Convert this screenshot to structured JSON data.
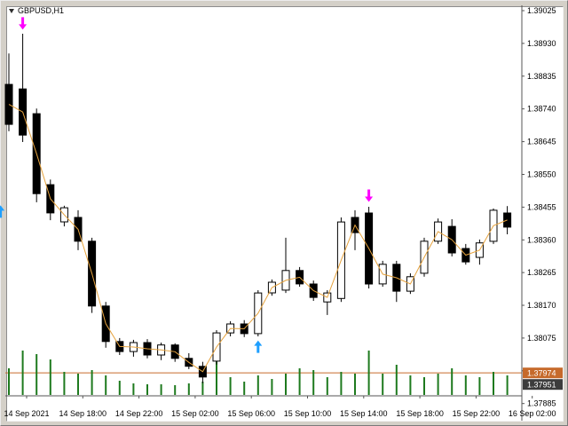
{
  "window": {
    "symbol_label": "GBPUSD,H1"
  },
  "colors": {
    "frame": "#D4D0C8",
    "plot_bg": "#FFFFFF",
    "bull": "#FFFFFF",
    "bear": "#000000",
    "wick": "#000000",
    "volume": "#1E7A1E",
    "zigzag": "#E6A33E",
    "hline": "#C66A2B",
    "sell_arrow": "#FF00FF",
    "buy_arrow": "#1E9FFF",
    "separator": "#555555",
    "axis_text": "#000000",
    "tag_text": "#FFFFFF"
  },
  "price_axis": {
    "labels": [
      "1.39025",
      "1.38930",
      "1.38835",
      "1.38740",
      "1.38645",
      "1.38550",
      "1.38455",
      "1.38360",
      "1.38265",
      "1.38170",
      "1.38075",
      "1.37980",
      "1.37885"
    ],
    "tags": [
      {
        "label": "1.37974",
        "price": 1.37974,
        "bg": "#C66A2B"
      },
      {
        "label": "1.37951",
        "price": 1.37951,
        "bg": "#3C3C3C"
      }
    ]
  },
  "time_axis": {
    "labels": [
      "14 Sep 2021",
      "14 Sep 18:00",
      "14 Sep 22:00",
      "15 Sep 02:00",
      "15 Sep 06:00",
      "15 Sep 10:00",
      "15 Sep 14:00",
      "15 Sep 18:00",
      "15 Sep 22:00",
      "16 Sep 02:00"
    ]
  },
  "chart_data": {
    "type": "candlestick",
    "symbol": "GBPUSD",
    "timeframe": "H1",
    "title": "GBPUSD,H1",
    "grid": false,
    "y_axis": {
      "top_label": 1.39025,
      "bottom_label": 1.37885,
      "step": 0.00095
    },
    "hline": {
      "label": "1.37974",
      "price": 1.37974
    },
    "candles": [
      {
        "t": "14 Sep 13:00",
        "o": 1.38811,
        "h": 1.38901,
        "l": 1.38675,
        "c": 1.38695,
        "v": 30
      },
      {
        "t": "14 Sep 14:00",
        "o": 1.38798,
        "h": 1.38958,
        "l": 1.38644,
        "c": 1.38664,
        "v": 50
      },
      {
        "t": "14 Sep 15:00",
        "o": 1.38726,
        "h": 1.38741,
        "l": 1.38469,
        "c": 1.38494,
        "v": 46
      },
      {
        "t": "14 Sep 16:00",
        "o": 1.3852,
        "h": 1.38535,
        "l": 1.38417,
        "c": 1.38438,
        "v": 40
      },
      {
        "t": "14 Sep 17:00",
        "o": 1.38412,
        "h": 1.38459,
        "l": 1.38399,
        "c": 1.38453,
        "v": 26
      },
      {
        "t": "14 Sep 18:00",
        "o": 1.38425,
        "h": 1.38446,
        "l": 1.3833,
        "c": 1.38356,
        "v": 24
      },
      {
        "t": "14 Sep 19:00",
        "o": 1.38356,
        "h": 1.38366,
        "l": 1.38148,
        "c": 1.38168,
        "v": 28
      },
      {
        "t": "14 Sep 20:00",
        "o": 1.38168,
        "h": 1.3818,
        "l": 1.38047,
        "c": 1.38065,
        "v": 22
      },
      {
        "t": "14 Sep 21:00",
        "o": 1.38065,
        "h": 1.38075,
        "l": 1.38026,
        "c": 1.38036,
        "v": 16
      },
      {
        "t": "14 Sep 22:00",
        "o": 1.38036,
        "h": 1.3807,
        "l": 1.38021,
        "c": 1.38062,
        "v": 13
      },
      {
        "t": "14 Sep 23:00",
        "o": 1.38062,
        "h": 1.38072,
        "l": 1.38016,
        "c": 1.38026,
        "v": 12
      },
      {
        "t": "15 Sep 00:00",
        "o": 1.38026,
        "h": 1.38062,
        "l": 1.38011,
        "c": 1.38055,
        "v": 12
      },
      {
        "t": "15 Sep 01:00",
        "o": 1.38055,
        "h": 1.3806,
        "l": 1.38006,
        "c": 1.38016,
        "v": 11
      },
      {
        "t": "15 Sep 02:00",
        "o": 1.38016,
        "h": 1.38031,
        "l": 1.37985,
        "c": 1.37993,
        "v": 13
      },
      {
        "t": "15 Sep 03:00",
        "o": 1.37993,
        "h": 1.38006,
        "l": 1.37944,
        "c": 1.37962,
        "v": 15
      },
      {
        "t": "15 Sep 04:00",
        "o": 1.38008,
        "h": 1.38098,
        "l": 1.37998,
        "c": 1.3809,
        "v": 52
      },
      {
        "t": "15 Sep 05:00",
        "o": 1.3809,
        "h": 1.38124,
        "l": 1.3808,
        "c": 1.38116,
        "v": 20
      },
      {
        "t": "15 Sep 06:00",
        "o": 1.38116,
        "h": 1.38127,
        "l": 1.38078,
        "c": 1.38088,
        "v": 15
      },
      {
        "t": "15 Sep 07:00",
        "o": 1.38088,
        "h": 1.38214,
        "l": 1.3808,
        "c": 1.38206,
        "v": 22
      },
      {
        "t": "15 Sep 08:00",
        "o": 1.38206,
        "h": 1.38245,
        "l": 1.38198,
        "c": 1.38237,
        "v": 18
      },
      {
        "t": "15 Sep 09:00",
        "o": 1.38214,
        "h": 1.38366,
        "l": 1.38206,
        "c": 1.38271,
        "v": 24
      },
      {
        "t": "15 Sep 10:00",
        "o": 1.38271,
        "h": 1.38281,
        "l": 1.38224,
        "c": 1.38232,
        "v": 30
      },
      {
        "t": "15 Sep 11:00",
        "o": 1.38232,
        "h": 1.38242,
        "l": 1.38183,
        "c": 1.38193,
        "v": 28
      },
      {
        "t": "15 Sep 12:00",
        "o": 1.3818,
        "h": 1.38214,
        "l": 1.38142,
        "c": 1.38206,
        "v": 20
      },
      {
        "t": "15 Sep 13:00",
        "o": 1.3819,
        "h": 1.38425,
        "l": 1.3818,
        "c": 1.38412,
        "v": 26
      },
      {
        "t": "15 Sep 14:00",
        "o": 1.38425,
        "h": 1.38446,
        "l": 1.3833,
        "c": 1.38381,
        "v": 24
      },
      {
        "t": "15 Sep 15:00",
        "o": 1.38438,
        "h": 1.38456,
        "l": 1.38219,
        "c": 1.38232,
        "v": 50
      },
      {
        "t": "15 Sep 16:00",
        "o": 1.38232,
        "h": 1.38299,
        "l": 1.38224,
        "c": 1.38289,
        "v": 24
      },
      {
        "t": "15 Sep 17:00",
        "o": 1.38289,
        "h": 1.38299,
        "l": 1.3818,
        "c": 1.38211,
        "v": 34
      },
      {
        "t": "15 Sep 18:00",
        "o": 1.38211,
        "h": 1.38263,
        "l": 1.38203,
        "c": 1.38253,
        "v": 22
      },
      {
        "t": "15 Sep 19:00",
        "o": 1.38263,
        "h": 1.38366,
        "l": 1.38253,
        "c": 1.38356,
        "v": 20
      },
      {
        "t": "15 Sep 20:00",
        "o": 1.38356,
        "h": 1.38422,
        "l": 1.38348,
        "c": 1.38412,
        "v": 24
      },
      {
        "t": "15 Sep 21:00",
        "o": 1.38399,
        "h": 1.3842,
        "l": 1.38312,
        "c": 1.38322,
        "v": 30
      },
      {
        "t": "15 Sep 22:00",
        "o": 1.38335,
        "h": 1.38348,
        "l": 1.38288,
        "c": 1.38296,
        "v": 22
      },
      {
        "t": "15 Sep 23:00",
        "o": 1.38309,
        "h": 1.38361,
        "l": 1.38288,
        "c": 1.38351,
        "v": 20
      },
      {
        "t": "16 Sep 00:00",
        "o": 1.38356,
        "h": 1.38451,
        "l": 1.38348,
        "c": 1.38446,
        "v": 26
      },
      {
        "t": "16 Sep 01:00",
        "o": 1.38438,
        "h": 1.38458,
        "l": 1.38376,
        "c": 1.38397,
        "v": 22
      }
    ],
    "signals": [
      {
        "type": "sell",
        "index": 1,
        "price": 1.3897
      },
      {
        "type": "buy",
        "index": -0.6,
        "price": 1.3846
      },
      {
        "type": "buy",
        "index": 18,
        "price": 1.38068
      },
      {
        "type": "sell",
        "index": 26,
        "price": 1.3847
      }
    ]
  }
}
